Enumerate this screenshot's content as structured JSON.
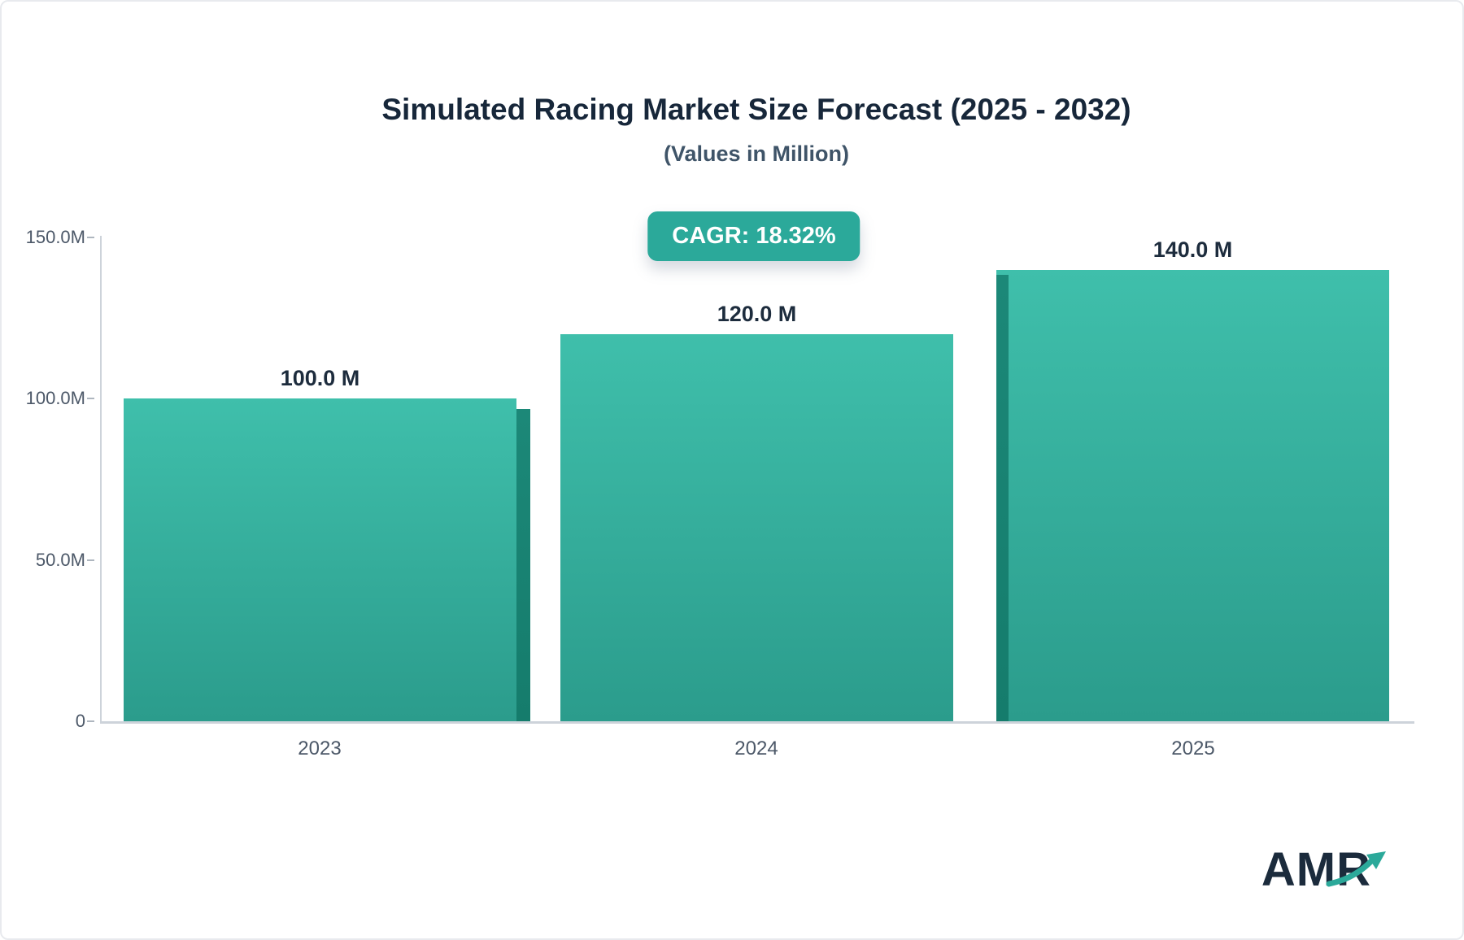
{
  "chart": {
    "title": "Simulated Racing Market Size Forecast (2025 - 2032)",
    "subtitle": "(Values in Million)",
    "cagr_label": "CAGR: 18.32%"
  },
  "branding": {
    "logo_text": "AMR"
  },
  "chart_data": {
    "type": "bar",
    "title": "Simulated Racing Market Size Forecast (2025 - 2032)",
    "subtitle": "(Values in Million)",
    "cagr": "18.32%",
    "unit": "Million",
    "categories": [
      "2023",
      "2024",
      "2025"
    ],
    "values": [
      100,
      120,
      140
    ],
    "value_labels": [
      "100.0 M",
      "120.0 M",
      "140.0 M"
    ],
    "ylim": [
      0,
      150
    ],
    "yticks": [
      {
        "value": 0,
        "label": "0"
      },
      {
        "value": 50,
        "label": "50.0M"
      },
      {
        "value": 100,
        "label": "100.0M"
      },
      {
        "value": 150,
        "label": "150.0M"
      }
    ],
    "grid": false,
    "legend": "none",
    "bar_color_top": "#3fbfab",
    "bar_color_bottom": "#2b9c8c",
    "bar_side_color": "#1c8878",
    "accent_color": "#2ba99a",
    "text_color": "#17273a"
  }
}
